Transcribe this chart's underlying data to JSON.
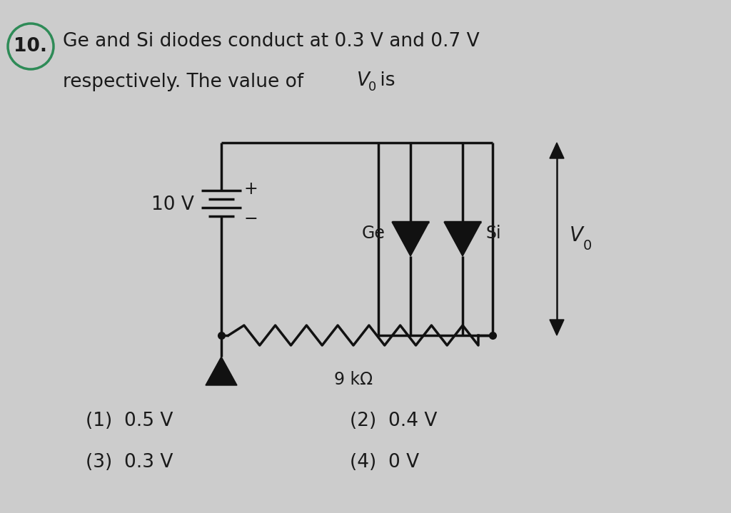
{
  "bg_color": "#cccccc",
  "circle_color": "#2e8b57",
  "text_color": "#1a1a1a",
  "line_color": "#111111",
  "title_line1": "Ge and Si diodes conduct at 0.3 V and 0.7 V",
  "title_line2_pre": "respectively. The value of ",
  "title_line2_V": "V",
  "title_line2_sub": "0",
  "title_line2_post": " is",
  "battery_label": "10 V",
  "resistor_label": "9 kΩ",
  "ge_label": "Ge",
  "si_label": "Si",
  "v0_label_V": "V",
  "v0_label_sub": "0",
  "options": [
    {
      "num": "(1)",
      "val": "0.5 V",
      "col": 0
    },
    {
      "num": "(2)",
      "val": "0.4 V",
      "col": 1
    },
    {
      "num": "(3)",
      "val": "0.3 V",
      "col": 0
    },
    {
      "num": "(4)",
      "val": "0 V",
      "col": 1
    }
  ]
}
